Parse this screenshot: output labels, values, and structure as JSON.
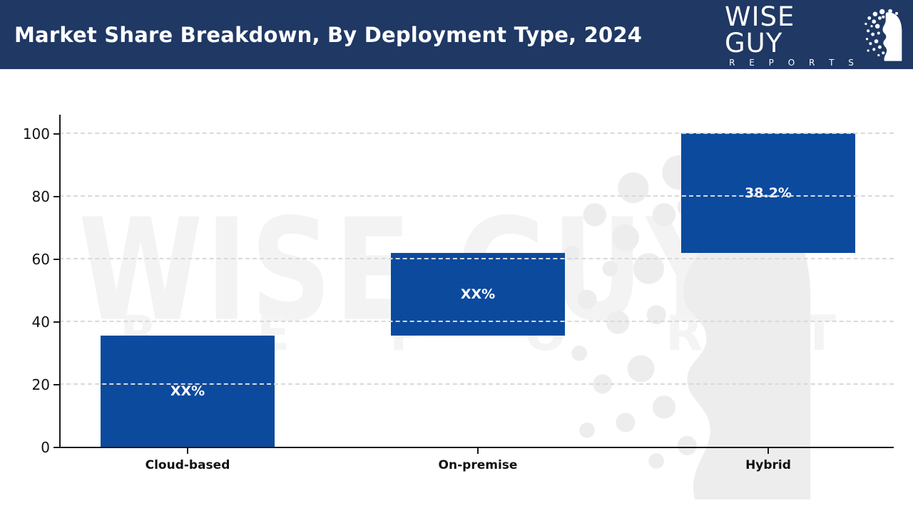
{
  "header": {
    "title": "Market Share Breakdown, By Deployment Type, 2024",
    "logo": {
      "line1": "WISE GUY",
      "line2": "R E P O R T S"
    }
  },
  "watermark": {
    "line1": "WISE GUY",
    "line2": "R E P O R T S"
  },
  "colors": {
    "header_bg": "#1f3864",
    "header_text": "#ffffff",
    "bar": "#0c4a9e",
    "bar_label_text": "#ffffff",
    "grid": "#d9d9d9",
    "axis": "#1a1a1a",
    "tick_text": "#111111",
    "watermark_text": "#f3f3f3"
  },
  "chart_data": {
    "type": "bar",
    "subtype": "waterfall-floating-bars",
    "title": "Market Share Breakdown, By Deployment Type, 2024",
    "categories": [
      "Cloud-based",
      "On-premise",
      "Hybrid"
    ],
    "segments": [
      {
        "category": "Cloud-based",
        "start": 0,
        "end": 35.4,
        "label": "XX%"
      },
      {
        "category": "On-premise",
        "start": 35.4,
        "end": 61.8,
        "label": "XX%"
      },
      {
        "category": "Hybrid",
        "start": 61.8,
        "end": 100,
        "label": "38.2%"
      }
    ],
    "xlabel": "",
    "ylabel": "",
    "y_ticks": [
      0,
      20,
      40,
      60,
      80,
      100
    ],
    "ylim": [
      0,
      105
    ],
    "grid": "horizontal-dashed",
    "legend": "none",
    "bar_color": "#0c4a9e"
  }
}
